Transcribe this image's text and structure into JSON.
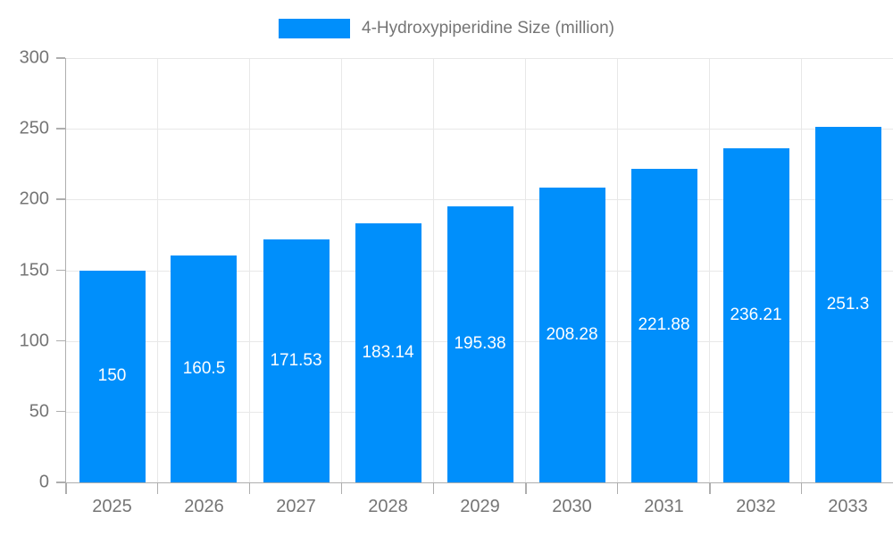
{
  "legend": {
    "label": "4-Hydroxypiperidine Size (million)",
    "swatch_color": "#008FFB"
  },
  "chart_data": {
    "type": "bar",
    "title": "4-Hydroxypiperidine Size (million)",
    "categories": [
      "2025",
      "2026",
      "2027",
      "2028",
      "2029",
      "2030",
      "2031",
      "2032",
      "2033"
    ],
    "values": [
      150,
      160.5,
      171.53,
      183.14,
      195.38,
      208.28,
      221.88,
      236.21,
      251.3
    ],
    "value_labels": [
      "150",
      "160.5",
      "171.53",
      "183.14",
      "195.38",
      "208.28",
      "221.88",
      "236.21",
      "251.3"
    ],
    "xlabel": "",
    "ylabel": "",
    "ylim": [
      0,
      300
    ],
    "ytick_step": 50,
    "ytick_labels": [
      "0",
      "50",
      "100",
      "150",
      "200",
      "250",
      "300"
    ],
    "grid": true,
    "legend_position": "top",
    "bar_color": "#008FFB",
    "value_label_color": "#ffffff",
    "tick_label_color": "#757575",
    "gridline_color": "#e8e8e8",
    "axis_line_color": "#aeaeae"
  }
}
